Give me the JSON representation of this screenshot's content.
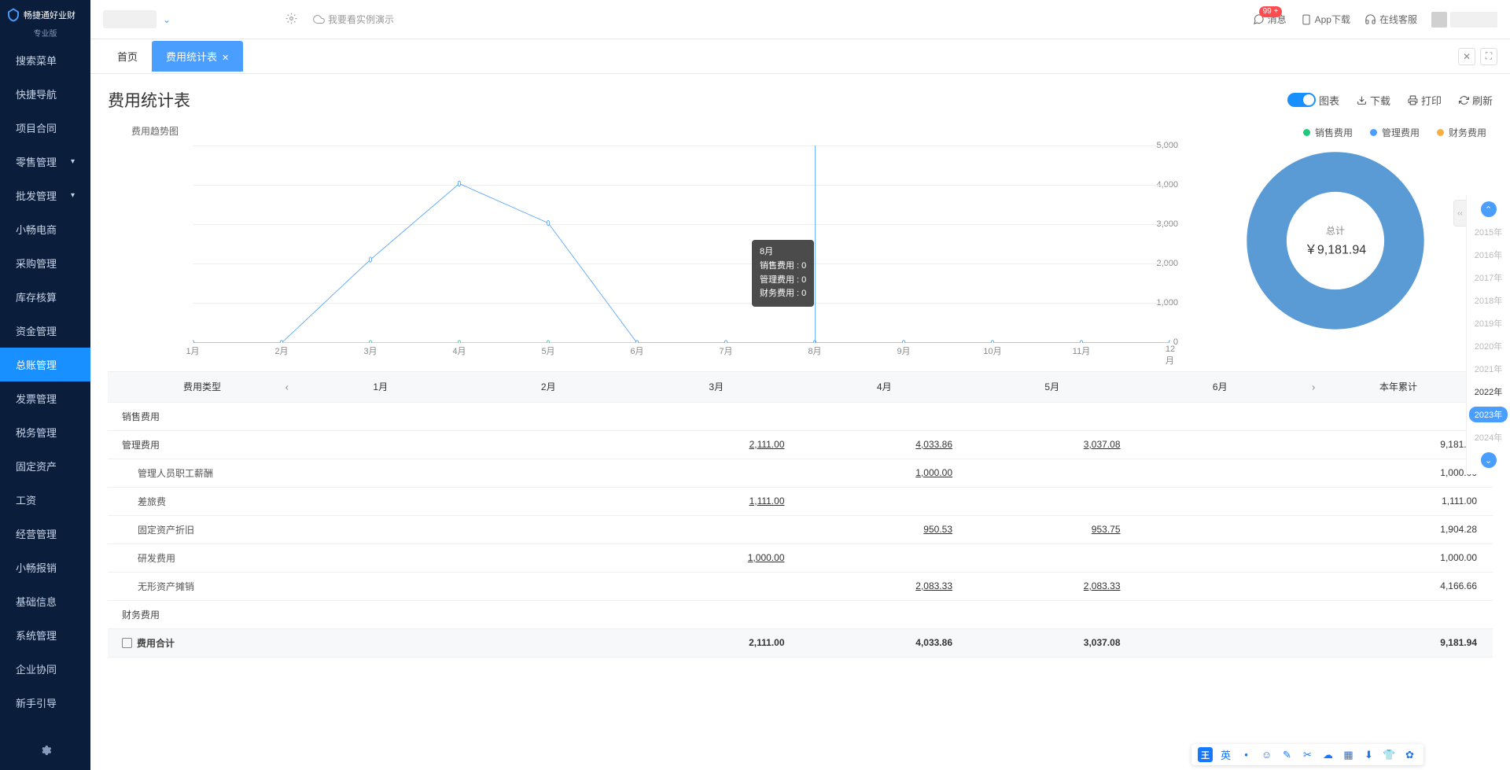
{
  "brand": {
    "name": "畅捷通好业财",
    "edition": "专业版"
  },
  "topbar": {
    "org": "　　　　",
    "demo": "我要看实例演示",
    "msg_label": "消息",
    "msg_badge": "99 +",
    "app_label": "App下载",
    "cs_label": "在线客服",
    "username": "　　　　"
  },
  "sidebar": [
    {
      "label": "搜索菜单"
    },
    {
      "label": "快捷导航"
    },
    {
      "label": "项目合同"
    },
    {
      "label": "零售管理",
      "expandable": true
    },
    {
      "label": "批发管理",
      "expandable": true
    },
    {
      "label": "小畅电商"
    },
    {
      "label": "采购管理"
    },
    {
      "label": "库存核算"
    },
    {
      "label": "资金管理"
    },
    {
      "label": "总账管理",
      "active": true
    },
    {
      "label": "发票管理"
    },
    {
      "label": "税务管理"
    },
    {
      "label": "固定资产"
    },
    {
      "label": "工资"
    },
    {
      "label": "经营管理"
    },
    {
      "label": "小畅报销"
    },
    {
      "label": "基础信息"
    },
    {
      "label": "系统管理"
    },
    {
      "label": "企业协同"
    },
    {
      "label": "新手引导"
    }
  ],
  "tabs": {
    "home": "首页",
    "active": "费用统计表"
  },
  "page": {
    "title": "费用统计表",
    "tools": {
      "chart": "图表",
      "download": "下载",
      "print": "打印",
      "refresh": "刷新"
    }
  },
  "line_chart": {
    "title": "费用趋势图",
    "y_ticks": [
      0,
      1000,
      2000,
      3000,
      4000,
      5000
    ],
    "x_labels": [
      "1月",
      "2月",
      "3月",
      "4月",
      "5月",
      "6月",
      "7月",
      "8月",
      "9月",
      "10月",
      "11月",
      "12月"
    ],
    "series_mgmt": [
      0,
      0,
      2111,
      4033.86,
      3037.08,
      0,
      0,
      0,
      0,
      0,
      0,
      0
    ],
    "series_sales": [
      0,
      0,
      0,
      0,
      0,
      0,
      0,
      0,
      0,
      0,
      0,
      0
    ],
    "series_fin": [
      0,
      0,
      0,
      0,
      0,
      0,
      0,
      0,
      0,
      0,
      0,
      0
    ],
    "hover_index": 7,
    "tooltip": {
      "title": "8月",
      "l1": "销售费用 : 0",
      "l2": "管理费用 : 0",
      "l3": "财务费用 : 0"
    },
    "colors": {
      "sales": "#1fc97b",
      "mgmt": "#4a9eff",
      "fin": "#f5b041",
      "grid": "#eeeeee",
      "tick": "#888888"
    }
  },
  "legend": {
    "sales": "销售费用",
    "mgmt": "管理费用",
    "fin": "财务费用"
  },
  "donut": {
    "label": "总计",
    "value": "￥9,181.94",
    "color": "#5b9bd5",
    "light": "#e8f1fb"
  },
  "years": {
    "list": [
      "2015年",
      "2016年",
      "2017年",
      "2018年",
      "2019年",
      "2020年",
      "2021年",
      "2022年",
      "2023年",
      "2024年"
    ],
    "current": "2022年",
    "selected": "2023年"
  },
  "table": {
    "header": {
      "type": "费用类型",
      "months": [
        "1月",
        "2月",
        "3月",
        "4月",
        "5月",
        "6月"
      ],
      "total": "本年累计"
    },
    "rows": [
      {
        "label": "销售费用",
        "vals": [
          "",
          "",
          "",
          "",
          "",
          ""
        ],
        "total": ""
      },
      {
        "label": "管理费用",
        "vals": [
          "",
          "",
          "2,111.00",
          "4,033.86",
          "3,037.08",
          ""
        ],
        "total": "9,181.94",
        "link": true
      },
      {
        "label": "管理人员职工薪酬",
        "indent": true,
        "vals": [
          "",
          "",
          "",
          "1,000.00",
          "",
          ""
        ],
        "total": "1,000.00",
        "link": true
      },
      {
        "label": "差旅费",
        "indent": true,
        "vals": [
          "",
          "",
          "1,111.00",
          "",
          "",
          ""
        ],
        "total": "1,111.00",
        "link": true
      },
      {
        "label": "固定资产折旧",
        "indent": true,
        "vals": [
          "",
          "",
          "",
          "950.53",
          "953.75",
          ""
        ],
        "total": "1,904.28",
        "link": true
      },
      {
        "label": "研发费用",
        "indent": true,
        "vals": [
          "",
          "",
          "1,000.00",
          "",
          "",
          ""
        ],
        "total": "1,000.00",
        "link": true
      },
      {
        "label": "无形资产摊销",
        "indent": true,
        "vals": [
          "",
          "",
          "",
          "2,083.33",
          "2,083.33",
          ""
        ],
        "total": "4,166.66",
        "link": true
      },
      {
        "label": "财务费用",
        "vals": [
          "",
          "",
          "",
          "",
          "",
          ""
        ],
        "total": ""
      }
    ],
    "total_row": {
      "label": "费用合计",
      "vals": [
        "",
        "",
        "2,111.00",
        "4,033.86",
        "3,037.08",
        ""
      ],
      "total": "9,181.94"
    }
  },
  "ime": [
    "王",
    "英",
    "•",
    "☺",
    "✎",
    "✂",
    "☁",
    "▦",
    "⬇",
    "👕",
    "✿"
  ]
}
